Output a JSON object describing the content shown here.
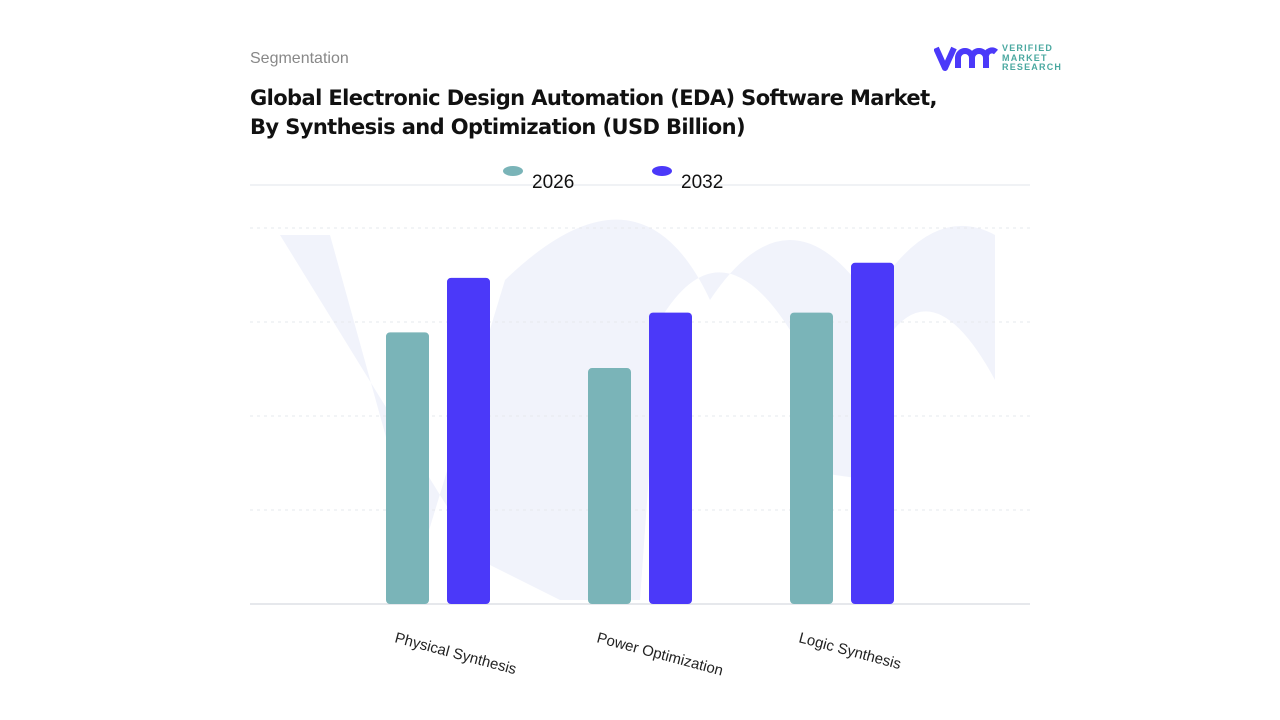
{
  "header": {
    "segment_label": "Segmentation",
    "title_line1": "Global Electronic Design Automation (EDA) Software Market,",
    "title_line2": "By Synthesis and Optimization (USD Billion)"
  },
  "logo": {
    "mark": "vmr",
    "line1": "VERIFIED",
    "line2": "MARKET",
    "line3": "RESEARCH"
  },
  "chart_data": {
    "type": "bar",
    "title": "Global Electronic Design Automation (EDA) Software Market, By Synthesis and Optimization (USD Billion)",
    "categories": [
      "Physical Synthesis",
      "Power Optimization",
      "Logic Synthesis"
    ],
    "series": [
      {
        "name": "2026",
        "color": "#7ab4b8",
        "values": [
          2.89,
          2.51,
          3.1
        ]
      },
      {
        "name": "2032",
        "color": "#4b39f9",
        "values": [
          3.47,
          3.1,
          3.63
        ]
      }
    ],
    "ylim": [
      0,
      4
    ],
    "grid": true,
    "legend": "top-center",
    "xlabel": "",
    "ylabel": ""
  }
}
